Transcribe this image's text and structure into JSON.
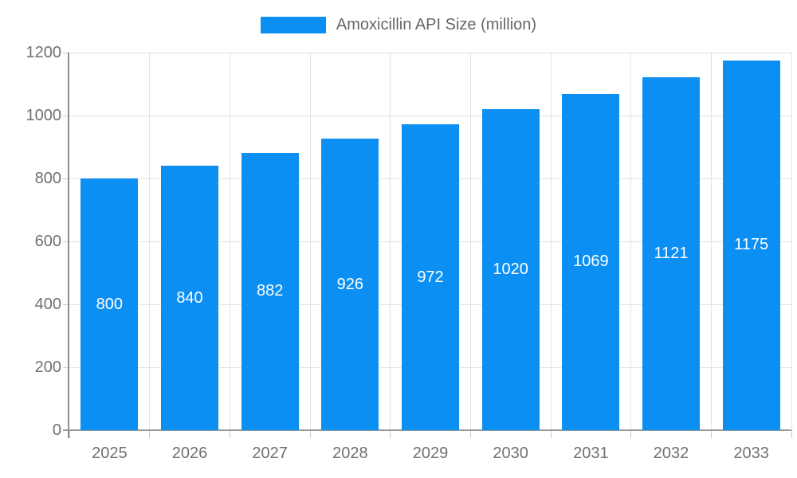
{
  "legend": {
    "label": "Amoxicillin API Size (million)"
  },
  "chart_data": {
    "type": "bar",
    "title": "Amoxicillin API Size (million)",
    "categories": [
      "2025",
      "2026",
      "2027",
      "2028",
      "2029",
      "2030",
      "2031",
      "2032",
      "2033"
    ],
    "values": [
      800,
      840,
      882,
      926,
      972,
      1020,
      1069,
      1121,
      1175
    ],
    "xlabel": "",
    "ylabel": "",
    "ylim": [
      0,
      1200
    ],
    "yticks": [
      0,
      200,
      400,
      600,
      800,
      1000,
      1200
    ],
    "grid": true,
    "legend_position": "top-center",
    "value_labels": "inside-center"
  },
  "colors": {
    "bar": "#0c8ff2",
    "grid": "#e2e2e2",
    "axis": "#999999",
    "tick_text": "#707070",
    "legend_text": "#666666",
    "value_label": "#ffffff",
    "background": "#ffffff"
  }
}
